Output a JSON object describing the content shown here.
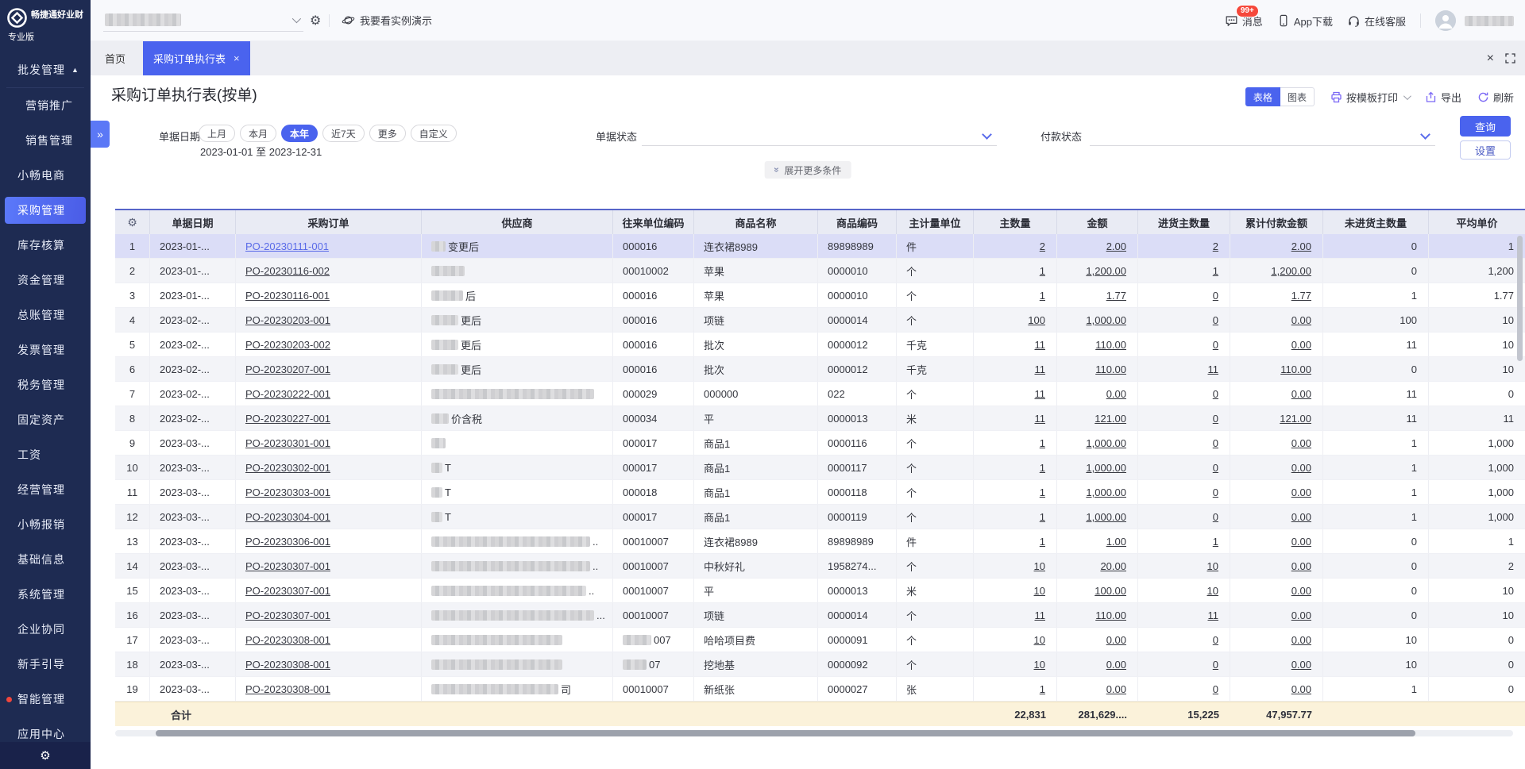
{
  "brand": {
    "name": "畅捷通好业财",
    "edition": "专业版"
  },
  "topbar": {
    "demo": "我要看实例演示",
    "messages": "消息",
    "messages_badge": "99+",
    "app_download": "App下载",
    "online_support": "在线客服"
  },
  "tabbar": {
    "home_tab": "首页",
    "active_tab": "采购订单执行表",
    "close_glyph": "×"
  },
  "sidebar": {
    "items": [
      {
        "label": "批发管理",
        "arrow": true,
        "divider_after": true
      },
      {
        "label": "营销推广",
        "indent": true
      },
      {
        "label": "销售管理",
        "indent": true
      },
      {
        "label": "小畅电商"
      },
      {
        "label": "采购管理",
        "active": true
      },
      {
        "label": "库存核算"
      },
      {
        "label": "资金管理"
      },
      {
        "label": "总账管理"
      },
      {
        "label": "发票管理"
      },
      {
        "label": "税务管理"
      },
      {
        "label": "固定资产"
      },
      {
        "label": "工资"
      },
      {
        "label": "经营管理"
      },
      {
        "label": "小畅报销"
      },
      {
        "label": "基础信息"
      },
      {
        "label": "系统管理"
      },
      {
        "label": "企业协同"
      },
      {
        "label": "新手引导"
      },
      {
        "label": "智能管理",
        "dot": true
      },
      {
        "label": "应用中心"
      }
    ]
  },
  "page_header": {
    "title": "采购订单执行表(按单)",
    "view_table": "表格",
    "view_chart": "图表",
    "active_view": "表格",
    "print": "按模板打印",
    "export": "导出",
    "refresh": "刷新"
  },
  "filters": {
    "date_label": "单据日期",
    "date_options": [
      "上月",
      "本月",
      "本年",
      "近7天",
      "更多",
      "自定义"
    ],
    "active_date_option": "本年",
    "date_range": "2023-01-01 至 2023-12-31",
    "doc_status_label": "单据状态",
    "pay_status_label": "付款状态",
    "search_button": "查询",
    "settings_button": "设置",
    "expand_button": "展开更多条件"
  },
  "table": {
    "columns": [
      "单据日期",
      "采购订单",
      "供应商",
      "往来单位编码",
      "商品名称",
      "商品编码",
      "主计量单位",
      "主数量",
      "金额",
      "进货主数量",
      "累计付款金额",
      "未进货主数量",
      "平均单价"
    ],
    "rows": [
      {
        "no": "1",
        "date": "2023-01-...",
        "po": "PO-20230111-001",
        "sup_blur": 18,
        "sup_text": "变更后",
        "code_blur": 0,
        "code": "000016",
        "name": "连衣裙8989",
        "sku": "89898989",
        "unit": "件",
        "qty": "2",
        "amount": "2.00",
        "in_qty": "2",
        "paid": "2.00",
        "uninv_qty": "0",
        "avg_price": "1",
        "selected": true
      },
      {
        "no": "2",
        "date": "2023-01-...",
        "po": "PO-20230116-002",
        "sup_blur": 42,
        "sup_text": "",
        "code_blur": 0,
        "code": "00010002",
        "name": "苹果",
        "sku": "0000010",
        "unit": "个",
        "qty": "1",
        "amount": "1,200.00",
        "in_qty": "1",
        "paid": "1,200.00",
        "uninv_qty": "0",
        "avg_price": "1,200"
      },
      {
        "no": "3",
        "date": "2023-01-...",
        "po": "PO-20230116-001",
        "sup_blur": 40,
        "sup_text": "后",
        "code_blur": 0,
        "code": "000016",
        "name": "苹果",
        "sku": "0000010",
        "unit": "个",
        "qty": "1",
        "amount": "1.77",
        "in_qty": "0",
        "paid": "1.77",
        "uninv_qty": "1",
        "avg_price": "1.77"
      },
      {
        "no": "4",
        "date": "2023-02-...",
        "po": "PO-20230203-001",
        "sup_blur": 34,
        "sup_text": "更后",
        "code_blur": 0,
        "code": "000016",
        "name": "项链",
        "sku": "0000014",
        "unit": "个",
        "qty": "100",
        "amount": "1,000.00",
        "in_qty": "0",
        "paid": "0.00",
        "uninv_qty": "100",
        "avg_price": "10"
      },
      {
        "no": "5",
        "date": "2023-02-...",
        "po": "PO-20230203-002",
        "sup_blur": 34,
        "sup_text": "更后",
        "code_blur": 0,
        "code": "000016",
        "name": "批次",
        "sku": "0000012",
        "unit": "千克",
        "qty": "11",
        "amount": "110.00",
        "in_qty": "0",
        "paid": "0.00",
        "uninv_qty": "11",
        "avg_price": "10"
      },
      {
        "no": "6",
        "date": "2023-02-...",
        "po": "PO-20230207-001",
        "sup_blur": 34,
        "sup_text": "更后",
        "code_blur": 0,
        "code": "000016",
        "name": "批次",
        "sku": "0000012",
        "unit": "千克",
        "qty": "11",
        "amount": "110.00",
        "in_qty": "11",
        "paid": "110.00",
        "uninv_qty": "0",
        "avg_price": "10"
      },
      {
        "no": "7",
        "date": "2023-02-...",
        "po": "PO-20230222-001",
        "sup_blur": 205,
        "sup_text": "",
        "code_blur": 0,
        "code": "000029",
        "name": "000000",
        "sku": "022",
        "unit": "个",
        "qty": "11",
        "amount": "0.00",
        "in_qty": "0",
        "paid": "0.00",
        "uninv_qty": "11",
        "avg_price": "0"
      },
      {
        "no": "8",
        "date": "2023-02-...",
        "po": "PO-20230227-001",
        "sup_blur": 22,
        "sup_text": "价含税",
        "code_blur": 0,
        "code": "000034",
        "name": "平",
        "sku": "0000013",
        "unit": "米",
        "qty": "11",
        "amount": "121.00",
        "in_qty": "0",
        "paid": "121.00",
        "uninv_qty": "11",
        "avg_price": "11"
      },
      {
        "no": "9",
        "date": "2023-03-...",
        "po": "PO-20230301-001",
        "sup_blur": 18,
        "sup_text": "",
        "code_blur": 0,
        "code": "000017",
        "name": "商品1",
        "sku": "0000116",
        "unit": "个",
        "qty": "1",
        "amount": "1,000.00",
        "in_qty": "0",
        "paid": "0.00",
        "uninv_qty": "1",
        "avg_price": "1,000"
      },
      {
        "no": "10",
        "date": "2023-03-...",
        "po": "PO-20230302-001",
        "sup_blur": 14,
        "sup_text": "T",
        "code_blur": 0,
        "code": "000017",
        "name": "商品1",
        "sku": "0000117",
        "unit": "个",
        "qty": "1",
        "amount": "1,000.00",
        "in_qty": "0",
        "paid": "0.00",
        "uninv_qty": "1",
        "avg_price": "1,000"
      },
      {
        "no": "11",
        "date": "2023-03-...",
        "po": "PO-20230303-001",
        "sup_blur": 14,
        "sup_text": "T",
        "code_blur": 0,
        "code": "000018",
        "name": "商品1",
        "sku": "0000118",
        "unit": "个",
        "qty": "1",
        "amount": "1,000.00",
        "in_qty": "0",
        "paid": "0.00",
        "uninv_qty": "1",
        "avg_price": "1,000"
      },
      {
        "no": "12",
        "date": "2023-03-...",
        "po": "PO-20230304-001",
        "sup_blur": 14,
        "sup_text": "T",
        "code_blur": 0,
        "code": "000017",
        "name": "商品1",
        "sku": "0000119",
        "unit": "个",
        "qty": "1",
        "amount": "1,000.00",
        "in_qty": "0",
        "paid": "0.00",
        "uninv_qty": "1",
        "avg_price": "1,000"
      },
      {
        "no": "13",
        "date": "2023-03-...",
        "po": "PO-20230306-001",
        "sup_blur": 200,
        "sup_text": "..",
        "code_blur": 0,
        "code": "00010007",
        "name": "连衣裙8989",
        "sku": "89898989",
        "unit": "件",
        "qty": "1",
        "amount": "1.00",
        "in_qty": "1",
        "paid": "0.00",
        "uninv_qty": "0",
        "avg_price": "1"
      },
      {
        "no": "14",
        "date": "2023-03-...",
        "po": "PO-20230307-001",
        "sup_blur": 200,
        "sup_text": "..",
        "code_blur": 0,
        "code": "00010007",
        "name": "中秋好礼",
        "sku": "1958274...",
        "unit": "个",
        "qty": "10",
        "amount": "20.00",
        "in_qty": "10",
        "paid": "0.00",
        "uninv_qty": "0",
        "avg_price": "2"
      },
      {
        "no": "15",
        "date": "2023-03-...",
        "po": "PO-20230307-001",
        "sup_blur": 195,
        "sup_text": "..",
        "code_blur": 0,
        "code": "00010007",
        "name": "平",
        "sku": "0000013",
        "unit": "米",
        "qty": "10",
        "amount": "100.00",
        "in_qty": "10",
        "paid": "0.00",
        "uninv_qty": "0",
        "avg_price": "10"
      },
      {
        "no": "16",
        "date": "2023-03-...",
        "po": "PO-20230307-001",
        "sup_blur": 205,
        "sup_text": "...",
        "code_blur": 0,
        "code": "00010007",
        "name": "项链",
        "sku": "0000014",
        "unit": "个",
        "qty": "11",
        "amount": "110.00",
        "in_qty": "11",
        "paid": "0.00",
        "uninv_qty": "0",
        "avg_price": "10"
      },
      {
        "no": "17",
        "date": "2023-03-...",
        "po": "PO-20230308-001",
        "sup_blur": 165,
        "sup_text": "",
        "code_blur": 36,
        "code": "007",
        "name": "哈哈项目费",
        "sku": "0000091",
        "unit": "个",
        "qty": "10",
        "amount": "0.00",
        "in_qty": "0",
        "paid": "0.00",
        "uninv_qty": "10",
        "avg_price": "0"
      },
      {
        "no": "18",
        "date": "2023-03-...",
        "po": "PO-20230308-001",
        "sup_blur": 165,
        "sup_text": "",
        "code_blur": 30,
        "code": "07",
        "name": "挖地基",
        "sku": "0000092",
        "unit": "个",
        "qty": "10",
        "amount": "0.00",
        "in_qty": "0",
        "paid": "0.00",
        "uninv_qty": "10",
        "avg_price": "0"
      },
      {
        "no": "19",
        "date": "2023-03-...",
        "po": "PO-20230308-001",
        "sup_blur": 160,
        "sup_text": "司",
        "code_blur": 0,
        "code": "00010007",
        "name": "新纸张",
        "sku": "0000027",
        "unit": "张",
        "qty": "1",
        "amount": "0.00",
        "in_qty": "0",
        "paid": "0.00",
        "uninv_qty": "1",
        "avg_price": "0"
      }
    ],
    "summary": {
      "label": "合计",
      "qty": "22,831",
      "amount": "281,629....",
      "in_qty": "15,225",
      "paid": "47,957.77"
    }
  },
  "colors": {
    "accent": "#4A63EE",
    "sidebar_bg": "#1E2B52",
    "selected_row": "#DBDDF7",
    "summary_bg": "#FBF2DA",
    "badge": "#F5483B",
    "header_bg": "#E9EBF4"
  }
}
